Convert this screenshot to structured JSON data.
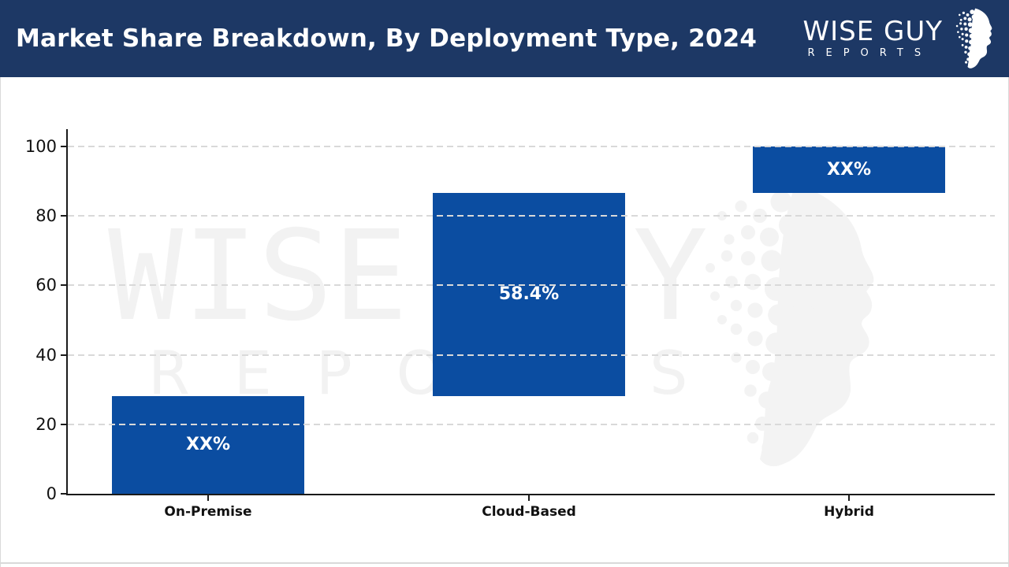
{
  "header": {
    "title": "Market Share Breakdown, By Deployment Type, 2024",
    "logo": {
      "line1": "WISE GUY",
      "line2": "REPORTS"
    }
  },
  "watermark": {
    "line1": "WISE GUY",
    "line2": "REPORTS"
  },
  "colors": {
    "header_bg": "#1d3865",
    "bar": "#0b4da1",
    "bar_label": "#ffffff",
    "grid": "#d9d9d9",
    "axis": "#1a1a1a",
    "tick_label": "#111111",
    "watermark": "#f2f2f2",
    "bottom_rule": "#d9d9d9"
  },
  "chart_data": {
    "type": "bar",
    "subtype": "stacked-segment waterfall of market share percentages",
    "title": "Market Share Breakdown, By Deployment Type, 2024",
    "categories": [
      "On-Premise",
      "Cloud-Based",
      "Hybrid"
    ],
    "segments": [
      {
        "category": "On-Premise",
        "start": 0,
        "end": 28.2,
        "value_label": "XX%"
      },
      {
        "category": "Cloud-Based",
        "start": 28.2,
        "end": 86.6,
        "value_label": "58.4%"
      },
      {
        "category": "Hybrid",
        "start": 86.6,
        "end": 100,
        "value_label": "XX%"
      }
    ],
    "xlabel": "",
    "ylabel": "",
    "y_ticks": [
      0,
      20,
      40,
      60,
      80,
      100
    ],
    "ylim": [
      0,
      105
    ],
    "grid": "horizontal dashed, drawn over bars",
    "legend": "none"
  }
}
